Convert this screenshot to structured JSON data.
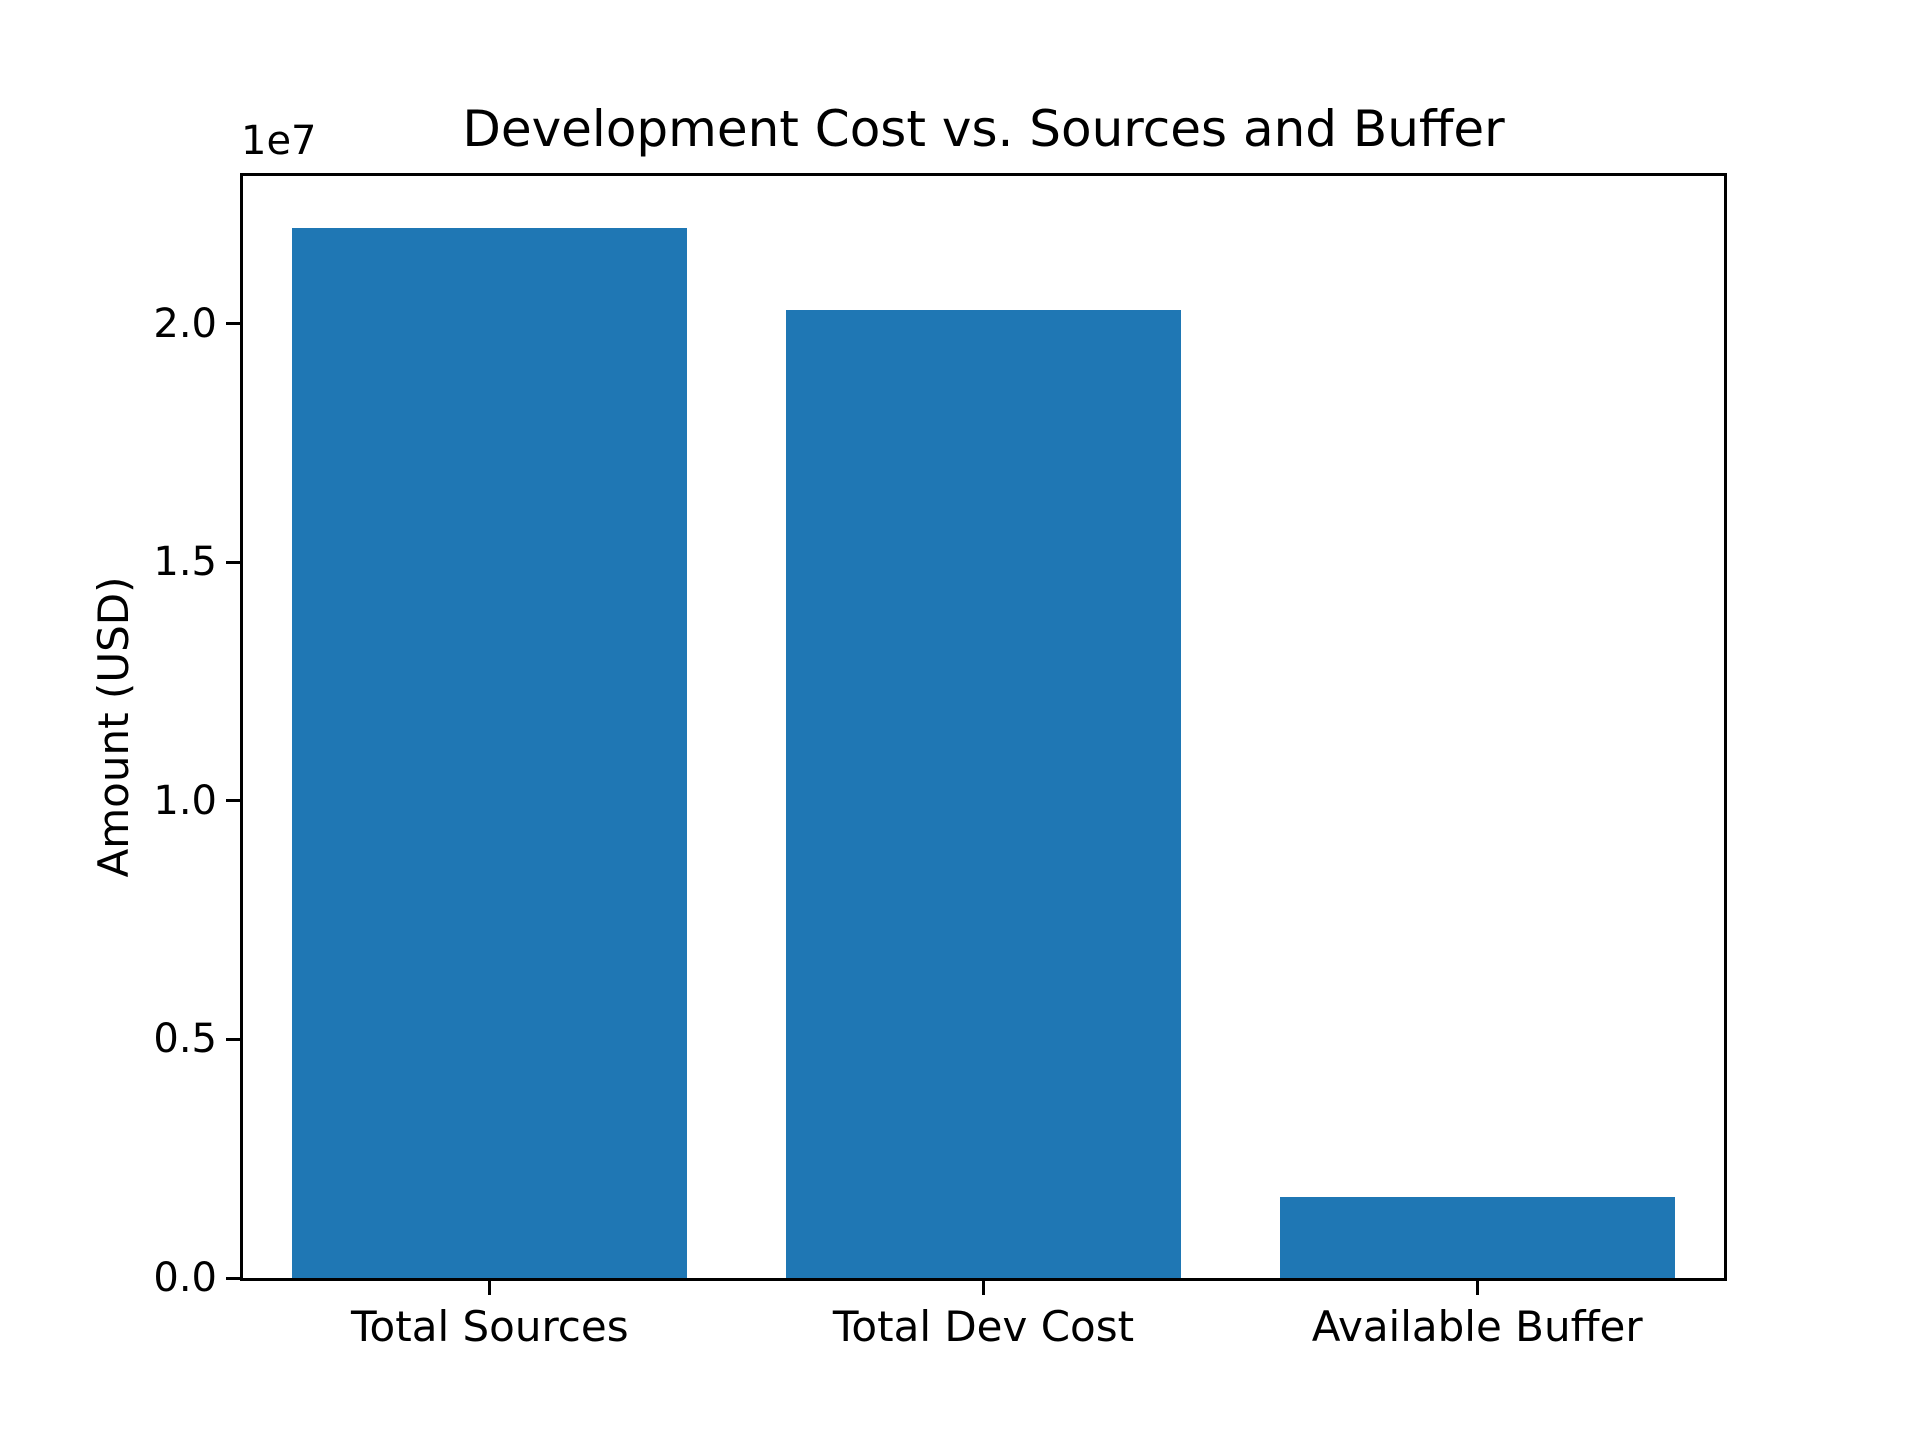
{
  "chart": {
    "title": "Development Cost vs. Sources and Buffer",
    "ylabel": "Amount (USD)",
    "offset_label": "1e7",
    "background_color": "#ffffff",
    "axis_color": "#000000",
    "bar_color": "#1f77b4"
  },
  "chart_data": {
    "type": "bar",
    "title": "Development Cost vs. Sources and Buffer",
    "xlabel": "",
    "ylabel": "Amount (USD)",
    "categories": [
      "Total Sources",
      "Total Dev Cost",
      "Available Buffer"
    ],
    "values": [
      22000000,
      20300000,
      1700000
    ],
    "bar_color": "#1f77b4",
    "bar_width_fraction": 0.8,
    "ylim": [
      0,
      23100000
    ],
    "yticks": [
      0,
      5000000,
      10000000,
      15000000,
      20000000
    ],
    "ytick_labels": [
      "0.0",
      "0.5",
      "1.0",
      "1.5",
      "2.0"
    ],
    "y_offset_text": "1e7",
    "grid": false,
    "legend_position": "none"
  }
}
